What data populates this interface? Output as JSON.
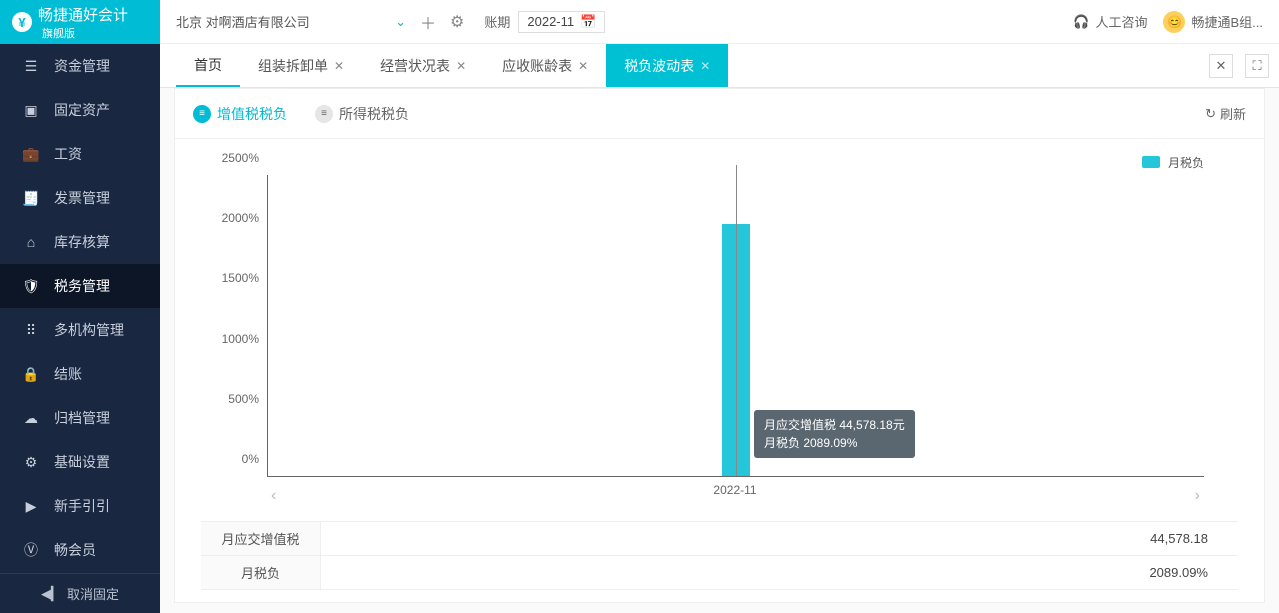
{
  "brand": {
    "name": "畅捷通好会计",
    "edition": "旗舰版"
  },
  "company": {
    "name": "北京 对啊酒店有限公司"
  },
  "period": {
    "label": "账期",
    "value": "2022-11"
  },
  "topbar": {
    "agent_label": "人工咨询",
    "user_label": "畅捷通B组..."
  },
  "sidebar": {
    "items": [
      {
        "label": "资金管理",
        "icon": "bars"
      },
      {
        "label": "固定资产",
        "icon": "box"
      },
      {
        "label": "工资",
        "icon": "wallet"
      },
      {
        "label": "发票管理",
        "icon": "receipt"
      },
      {
        "label": "库存核算",
        "icon": "home"
      },
      {
        "label": "税务管理",
        "icon": "shield",
        "active": true
      },
      {
        "label": "多机构管理",
        "icon": "org"
      },
      {
        "label": "结账",
        "icon": "lock"
      },
      {
        "label": "归档管理",
        "icon": "cloud"
      },
      {
        "label": "基础设置",
        "icon": "gear"
      },
      {
        "label": "新手引引",
        "icon": "play"
      },
      {
        "label": "畅会员",
        "icon": "vip"
      }
    ],
    "collapse_label": "取消固定"
  },
  "tabs": [
    {
      "label": "首页",
      "closable": false
    },
    {
      "label": "组装拆卸单",
      "closable": true
    },
    {
      "label": "经营状况表",
      "closable": true
    },
    {
      "label": "应收账龄表",
      "closable": true
    },
    {
      "label": "税负波动表",
      "closable": true,
      "active": true
    }
  ],
  "subtabs": [
    {
      "label": "增值税税负",
      "active": true
    },
    {
      "label": "所得税税负",
      "active": false
    }
  ],
  "refresh_label": "刷新",
  "chart": {
    "type": "bar",
    "legend": [
      {
        "label": "月税负",
        "color": "#26c6da"
      }
    ],
    "y_ticks": [
      0,
      500,
      1000,
      1500,
      2000,
      2500
    ],
    "y_suffix": "%",
    "y_max": 2500,
    "x_labels": [
      "2022-11"
    ],
    "series": [
      {
        "x": "2022-11",
        "value": 2089.09,
        "color": "#26c6da"
      }
    ],
    "tooltip": {
      "line1": "月应交增值税 44,578.18元",
      "line2": "月税负 2089.09%"
    },
    "axis_color": "#666666",
    "background_color": "#ffffff"
  },
  "data_table": [
    {
      "label": "月应交增值税",
      "value": "44,578.18"
    },
    {
      "label": "月税负",
      "value": "2089.09%"
    }
  ]
}
